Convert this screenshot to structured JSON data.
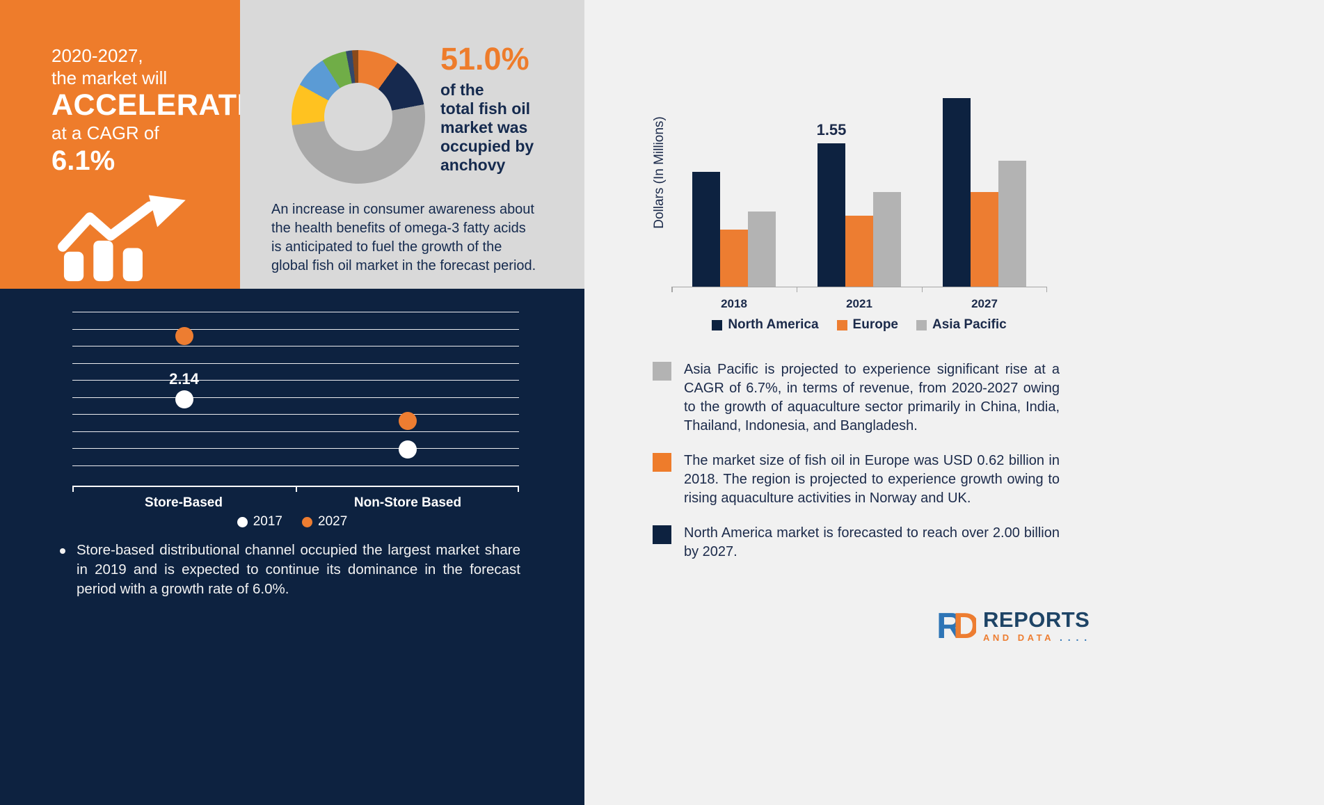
{
  "palette": {
    "orange": "#EE7C2B",
    "navy": "#0D2240",
    "card_gray": "#D9D9D9",
    "panel_gray": "#F1F1F1",
    "bar_gray": "#B3B3B3",
    "text_navy": "#1B2A4A",
    "white": "#FFFFFF"
  },
  "promo_card": {
    "period": "2020-2027,",
    "line2": "the market will",
    "headline": "ACCELERATE",
    "line4": "at a CAGR of",
    "cagr": "6.1%"
  },
  "anchovy_card": {
    "stat": "51.0%",
    "caption": "of the\ntotal fish oil\nmarket was\noccupied by\nanchovy",
    "paragraph": "An increase in consumer awareness about the health benefits of omega-3 fatty acids is anticipated to fuel the growth of the global fish oil market in the forecast period."
  },
  "distribution_section": {
    "bullet": "Store-based distributional channel occupied the largest market share in 2019 and is expected to continue its dominance in the forecast period with a growth rate of 6.0%."
  },
  "regional_section": {
    "bullets": [
      {
        "color": "#B3B3B3",
        "text": "Asia Pacific is projected to experience significant rise at a CAGR of 6.7%, in terms of revenue, from 2020-2027 owing to the growth of aquaculture sector primarily in China, India, Thailand, Indonesia, and Bangladesh."
      },
      {
        "color": "#EE7C2B",
        "text": "The market size of fish oil in Europe was USD 0.62 billion in 2018. The region is projected to experience growth owing to rising aquaculture activities in Norway and UK."
      },
      {
        "color": "#0D2240",
        "text": "North America market is forecasted to reach over 2.00 billion by 2027."
      }
    ]
  },
  "logo": {
    "mark_r": "R",
    "mark_d": "D",
    "name": "REPORTS",
    "tagline": "AND DATA",
    "dots": ". . . ."
  },
  "chart_data": [
    {
      "id": "anchovy-donut",
      "type": "pie",
      "donut": true,
      "slices": [
        {
          "label": "unlabeled-orange",
          "value": 10,
          "color": "#ED7D31"
        },
        {
          "label": "unlabeled-dark-navy",
          "value": 12,
          "color": "#16294E"
        },
        {
          "label": "anchovy",
          "value": 51,
          "color": "#A8A8A8"
        },
        {
          "label": "unlabeled-yellow",
          "value": 10,
          "color": "#FFC220"
        },
        {
          "label": "unlabeled-light-blue",
          "value": 8,
          "color": "#5B9BD5"
        },
        {
          "label": "unlabeled-green",
          "value": 6,
          "color": "#70AD47"
        },
        {
          "label": "unlabeled-steel-blue",
          "value": 1.5,
          "color": "#33486B"
        },
        {
          "label": "unlabeled-brown",
          "value": 1.5,
          "color": "#8A4A1B"
        }
      ]
    },
    {
      "id": "distribution-dot-plot",
      "type": "scatter",
      "categories": [
        "Store-Based",
        "Non-Store Based"
      ],
      "ylim": [
        0,
        4.3
      ],
      "grid": true,
      "series": [
        {
          "name": "2017",
          "color": "#FFFFFF",
          "values": [
            2.14,
            0.9
          ]
        },
        {
          "name": "2027",
          "color": "#ED7D31",
          "values": [
            3.7,
            1.6
          ]
        }
      ],
      "data_labels": [
        {
          "series": "2017",
          "category": "Store-Based",
          "text": "2.14"
        }
      ]
    },
    {
      "id": "regional-bar-chart",
      "type": "bar",
      "ylabel": "Dollars (In Millions)",
      "categories": [
        "2018",
        "2021",
        "2027"
      ],
      "ylim": [
        0,
        2.25
      ],
      "legend_position": "bottom",
      "series": [
        {
          "name": "North America",
          "color": "#0D2240",
          "values": [
            1.24,
            1.55,
            2.04
          ]
        },
        {
          "name": "Europe",
          "color": "#ED7D31",
          "values": [
            0.62,
            0.77,
            1.02
          ]
        },
        {
          "name": "Asia Pacific",
          "color": "#B3B3B3",
          "values": [
            0.81,
            1.02,
            1.36
          ]
        }
      ],
      "data_labels": [
        {
          "series": "North America",
          "category": "2021",
          "text": "1.55"
        }
      ]
    }
  ]
}
